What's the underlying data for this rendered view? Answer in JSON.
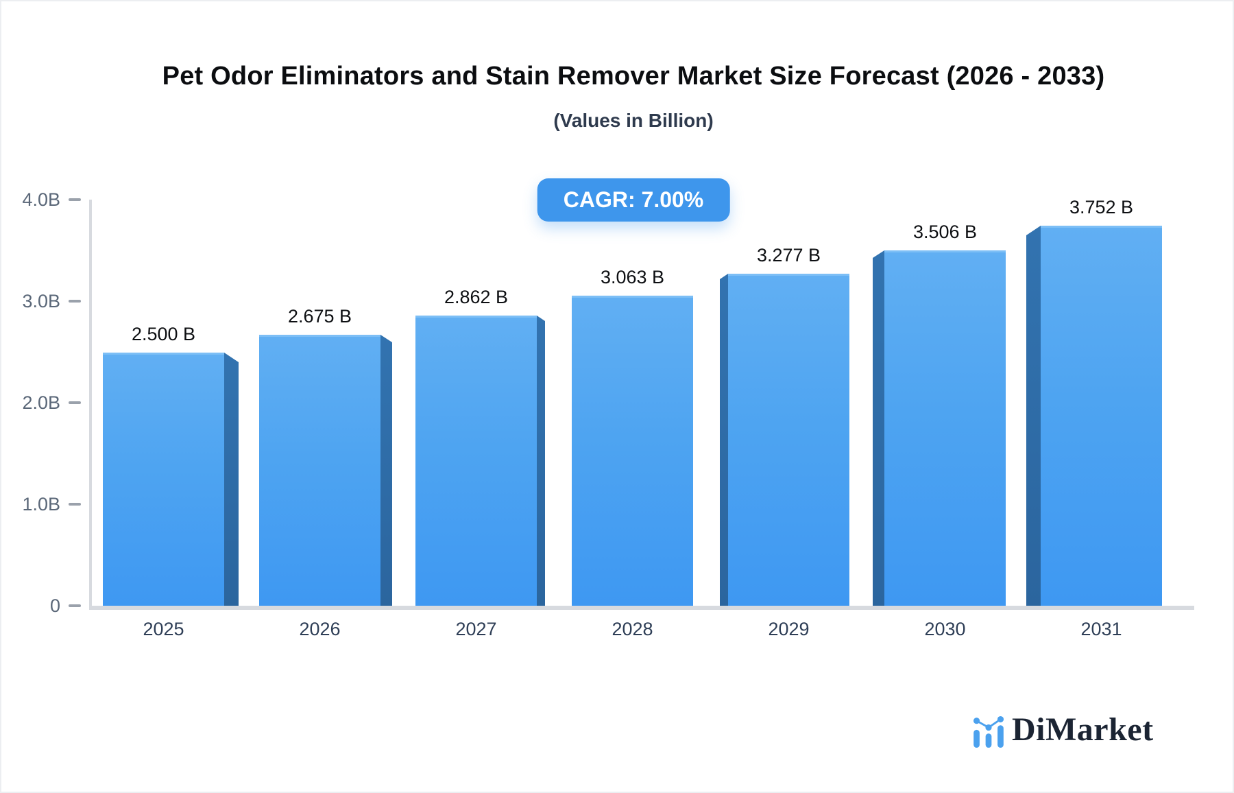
{
  "title": "Pet Odor Eliminators and Stain Remover Market Size Forecast (2026 - 2033)",
  "subtitle": "(Values in Billion)",
  "badge": {
    "label": "CAGR: 7.00%"
  },
  "brand": {
    "name": "DiMarket",
    "icon": "bar-line-chart-logo-icon"
  },
  "colors": {
    "bar_face_top": "#61aff3",
    "bar_face_bottom": "#3e98f2",
    "bar_side": "#2f6fab",
    "badge_bg": "#3e96ec",
    "axis": "#d7dadf",
    "y_label": "#5a6778",
    "x_label": "#2e3e56",
    "title": "#0b0d10",
    "brand_blue": "#4ba1ee",
    "brand_navy": "#1b2433"
  },
  "chart_data": {
    "type": "bar",
    "title": "Pet Odor Eliminators and Stain Remover Market Size Forecast (2026 - 2033)",
    "subtitle": "(Values in Billion)",
    "categories": [
      "2025",
      "2026",
      "2027",
      "2028",
      "2029",
      "2030",
      "2031"
    ],
    "values": [
      2.5,
      2.675,
      2.862,
      3.063,
      3.277,
      3.506,
      3.752
    ],
    "value_labels": [
      "2.500 B",
      "2.675 B",
      "2.862 B",
      "3.063 B",
      "3.277 B",
      "3.506 B",
      "3.752 B"
    ],
    "cagr": "7.00%",
    "xlabel": "",
    "ylabel": "",
    "ylim": [
      0,
      4.0
    ],
    "yticks": [
      {
        "value": 0.0,
        "label": "0"
      },
      {
        "value": 1.0,
        "label": "1.0B"
      },
      {
        "value": 2.0,
        "label": "2.0B"
      },
      {
        "value": 3.0,
        "label": "3.0B"
      },
      {
        "value": 4.0,
        "label": "4.0B"
      }
    ],
    "grid": false,
    "legend": false,
    "style": "3d-perspective-bars"
  }
}
